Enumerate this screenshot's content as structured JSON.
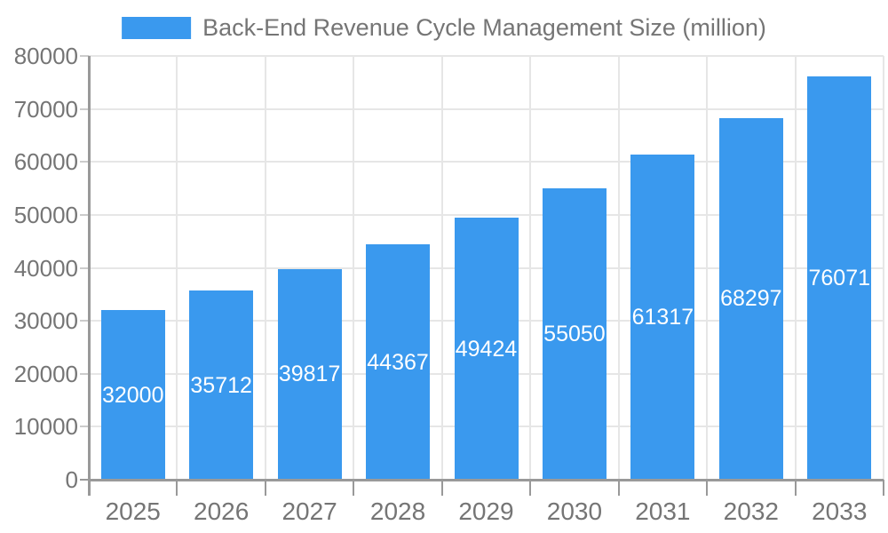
{
  "chart_data": {
    "type": "bar",
    "title": "Back-End Revenue Cycle Management Size (million)",
    "categories": [
      "2025",
      "2026",
      "2027",
      "2028",
      "2029",
      "2030",
      "2031",
      "2032",
      "2033"
    ],
    "series": [
      {
        "name": "Back-End Revenue Cycle Management Size (million)",
        "values": [
          32000,
          35712,
          39817,
          44367,
          49424,
          55050,
          61317,
          68297,
          76071
        ]
      }
    ],
    "values": [
      32000,
      35712,
      39817,
      44367,
      49424,
      55050,
      61317,
      68297,
      76071
    ],
    "xlabel": "",
    "ylabel": "",
    "ylim": [
      0,
      80000
    ],
    "ytick_step": 10000,
    "ytick_labels": [
      "0",
      "10000",
      "20000",
      "30000",
      "40000",
      "50000",
      "60000",
      "70000",
      "80000"
    ],
    "grid": true,
    "legend_position": "top-center",
    "bar_color": "#3A99EE",
    "bar_label_color": "#ffffff",
    "grid_color": "#e6e6e6",
    "axis_color": "#999999",
    "y_tick_color": "#cccccc",
    "tick_label_color": "#757575",
    "background_color": "#ffffff"
  }
}
